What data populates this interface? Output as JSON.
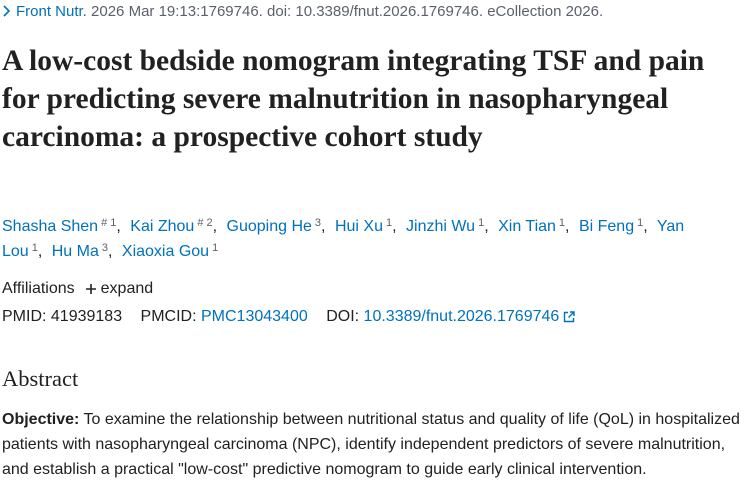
{
  "citation": {
    "journal": "Front Nutr.",
    "details": "2026 Mar 19:13:1769746. doi: 10.3389/fnut.2026.1769746. eCollection 2026."
  },
  "title": "A low-cost bedside nomogram integrating TSF and pain for predicting severe malnutrition in nasopharyngeal carcinoma: a prospective cohort study",
  "authors": [
    {
      "name": "Shasha Shen",
      "sup": "# 1"
    },
    {
      "name": "Kai Zhou",
      "sup": "# 2"
    },
    {
      "name": "Guoping He",
      "sup": "3"
    },
    {
      "name": "Hui Xu",
      "sup": "1"
    },
    {
      "name": "Jinzhi Wu",
      "sup": "1"
    },
    {
      "name": "Xin Tian",
      "sup": "1"
    },
    {
      "name": "Bi Feng",
      "sup": "1"
    },
    {
      "name": "Yan Lou",
      "sup": "1"
    },
    {
      "name": "Hu Ma",
      "sup": "3"
    },
    {
      "name": "Xiaoxia Gou",
      "sup": "1"
    }
  ],
  "affiliations": {
    "label": "Affiliations",
    "toggle": "expand"
  },
  "ids": {
    "pmid_label": "PMID:",
    "pmid": "41939183",
    "pmcid_label": "PMCID:",
    "pmcid": "PMC13043400",
    "doi_label": "DOI:",
    "doi": "10.3389/fnut.2026.1769746"
  },
  "abstract": {
    "heading": "Abstract",
    "label": "Objective:",
    "text": "To examine the relationship between nutritional status and quality of life (QoL) in hospitalized patients with nasopharyngeal carcinoma (NPC), identify independent predictors of severe malnutrition, and establish a practical \"low-cost\" predictive nomogram to guide early clinical intervention."
  }
}
